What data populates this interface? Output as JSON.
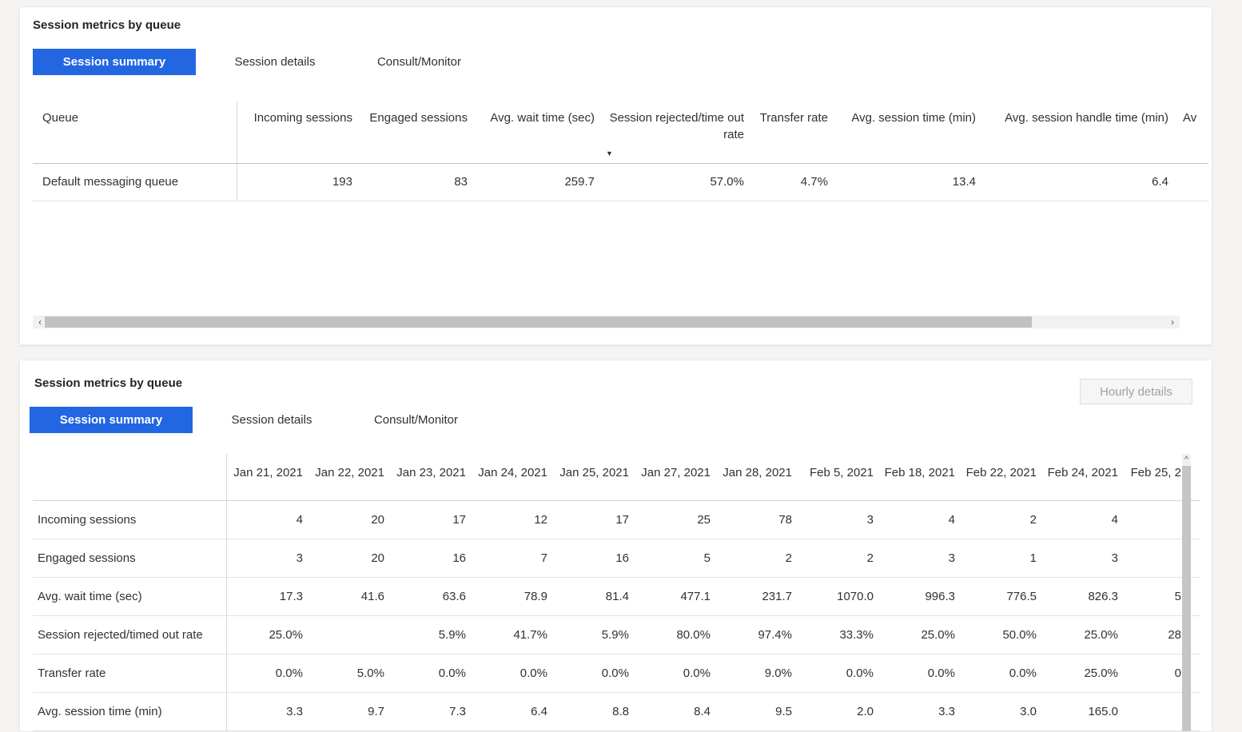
{
  "colors": {
    "accent": "#2266e2"
  },
  "icons": {
    "sort_desc": "▼",
    "scroll_left": "‹",
    "scroll_right": "›",
    "scroll_up": "^"
  },
  "top_card": {
    "title": "Session metrics by queue",
    "tabs": [
      {
        "label": "Session summary",
        "active": true
      },
      {
        "label": "Session details",
        "active": false
      },
      {
        "label": "Consult/Monitor",
        "active": false
      }
    ],
    "table": {
      "headers": [
        "Queue",
        "Incoming sessions",
        "Engaged sessions",
        "Avg. wait time (sec)",
        "Session rejected/time out rate",
        "Transfer rate",
        "Avg. session time (min)",
        "Avg. session handle time (min)",
        "Av"
      ],
      "sorted_header_index": 4,
      "rows": [
        [
          "Default messaging queue",
          "193",
          "83",
          "259.7",
          "57.0%",
          "4.7%",
          "13.4",
          "6.4",
          ""
        ]
      ]
    }
  },
  "bottom_card": {
    "title": "Session metrics by queue",
    "hourly_details_button": "Hourly details",
    "tabs": [
      {
        "label": "Session summary",
        "active": true
      },
      {
        "label": "Session details",
        "active": false
      },
      {
        "label": "Consult/Monitor",
        "active": false
      }
    ],
    "table": {
      "date_headers": [
        "Jan 21, 2021",
        "Jan 22, 2021",
        "Jan 23, 2021",
        "Jan 24, 2021",
        "Jan 25, 2021",
        "Jan 27, 2021",
        "Jan 28, 2021",
        "Feb 5, 2021",
        "Feb 18, 2021",
        "Feb 22, 2021",
        "Feb 24, 2021",
        "Feb 25, 2"
      ],
      "rows": [
        {
          "label": "Incoming sessions",
          "values": [
            "4",
            "20",
            "17",
            "12",
            "17",
            "25",
            "78",
            "3",
            "4",
            "2",
            "4",
            ""
          ]
        },
        {
          "label": "Engaged sessions",
          "values": [
            "3",
            "20",
            "16",
            "7",
            "16",
            "5",
            "2",
            "2",
            "3",
            "1",
            "3",
            ""
          ]
        },
        {
          "label": "Avg. wait time (sec)",
          "values": [
            "17.3",
            "41.6",
            "63.6",
            "78.9",
            "81.4",
            "477.1",
            "231.7",
            "1070.0",
            "996.3",
            "776.5",
            "826.3",
            "5"
          ]
        },
        {
          "label": "Session rejected/timed out rate",
          "values": [
            "25.0%",
            "",
            "5.9%",
            "41.7%",
            "5.9%",
            "80.0%",
            "97.4%",
            "33.3%",
            "25.0%",
            "50.0%",
            "25.0%",
            "28"
          ]
        },
        {
          "label": "Transfer rate",
          "values": [
            "0.0%",
            "5.0%",
            "0.0%",
            "0.0%",
            "0.0%",
            "0.0%",
            "9.0%",
            "0.0%",
            "0.0%",
            "0.0%",
            "25.0%",
            "0"
          ]
        },
        {
          "label": "Avg. session time (min)",
          "values": [
            "3.3",
            "9.7",
            "7.3",
            "6.4",
            "8.8",
            "8.4",
            "9.5",
            "2.0",
            "3.3",
            "3.0",
            "165.0",
            ""
          ]
        }
      ]
    }
  }
}
